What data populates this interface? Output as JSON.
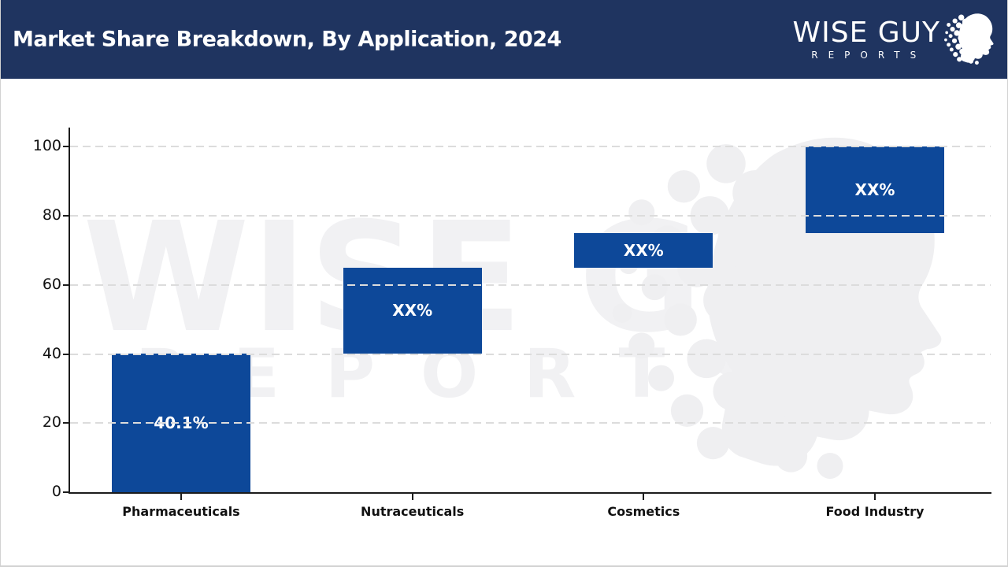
{
  "header": {
    "title": "Market Share Breakdown, By Application, 2024",
    "logo": {
      "line1": "WISE GUY",
      "line2": "REPORTS"
    }
  },
  "watermark": {
    "line1": "WISE GUY",
    "line2": "REPORTS"
  },
  "colors": {
    "header_bg": "#1f3460",
    "bar_fill": "#0d4899",
    "bar_label_text": "#ffffff",
    "gridline": "#dcdcdc",
    "axis": "#1c1c1c",
    "watermark": "#f1f1f3"
  },
  "chart_data": {
    "type": "bar",
    "subtype": "waterfall",
    "title": "Market Share Breakdown, By Application, 2024",
    "categories": [
      "Pharmaceuticals",
      "Nutraceuticals",
      "Cosmetics",
      "Food Industry"
    ],
    "segments": [
      {
        "category": "Pharmaceuticals",
        "start": 0,
        "end": 40.1,
        "label": "40.1%"
      },
      {
        "category": "Nutraceuticals",
        "start": 40.1,
        "end": 65,
        "label": "XX%"
      },
      {
        "category": "Cosmetics",
        "start": 65,
        "end": 75,
        "label": "XX%"
      },
      {
        "category": "Food Industry",
        "start": 75,
        "end": 100,
        "label": "XX%"
      }
    ],
    "xlabel": "",
    "ylabel": "",
    "yticks": [
      0,
      20,
      40,
      60,
      80,
      100
    ],
    "ylim": [
      0,
      105
    ],
    "grid": "horizontal dashed, drawn above bars",
    "legend": "none"
  }
}
